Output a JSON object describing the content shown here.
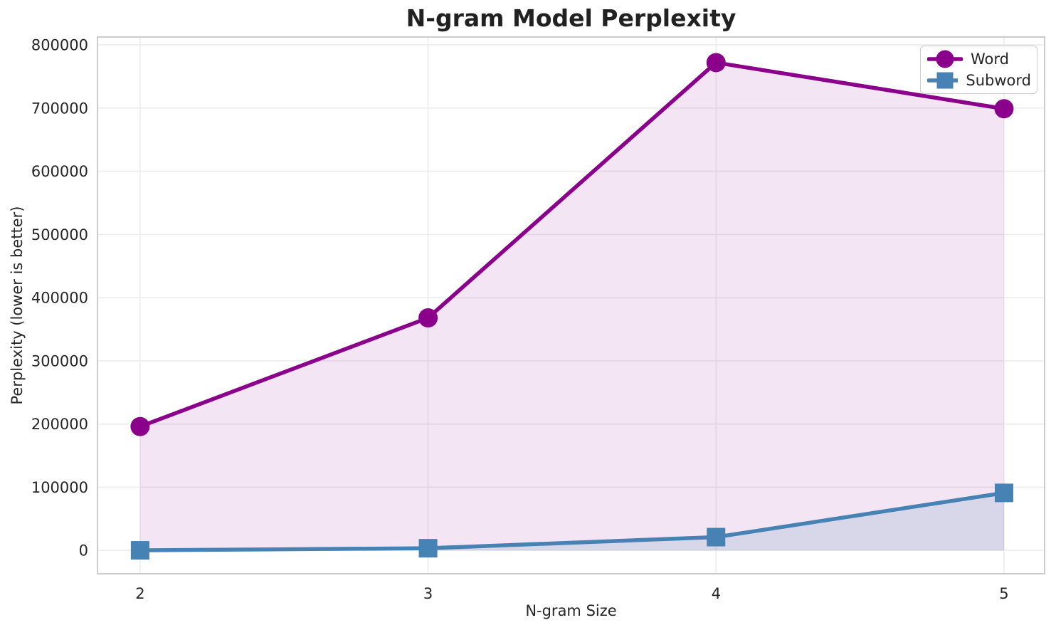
{
  "chart_data": {
    "type": "line",
    "title": "N-gram Model Perplexity",
    "xlabel": "N-gram Size",
    "ylabel": "Perplexity (lower is better)",
    "x": [
      2,
      3,
      4,
      5
    ],
    "series": [
      {
        "name": "Word",
        "marker": "circle",
        "color": "#8B008B",
        "fill_alpha": 0.1,
        "values": [
          196000,
          368000,
          772000,
          699000
        ]
      },
      {
        "name": "Subword",
        "marker": "square",
        "color": "#4682B4",
        "fill_alpha": 0.15,
        "values": [
          100,
          3400,
          21000,
          91000
        ]
      }
    ],
    "xticks": [
      2,
      3,
      4,
      5
    ],
    "yticks": [
      0,
      100000,
      200000,
      300000,
      400000,
      500000,
      600000,
      700000,
      800000
    ],
    "xlim": [
      1.852,
      5.141
    ],
    "ylim": [
      -37000,
      812500
    ],
    "fill_baseline": 0,
    "grid": true,
    "legend_position": "upper right",
    "style": {
      "grid_color": "#ececec",
      "spine_color": "#cccccc",
      "text_color": "#262626",
      "title_color": "#212121",
      "background": "#ffffff",
      "line_width": 5.5
    }
  }
}
